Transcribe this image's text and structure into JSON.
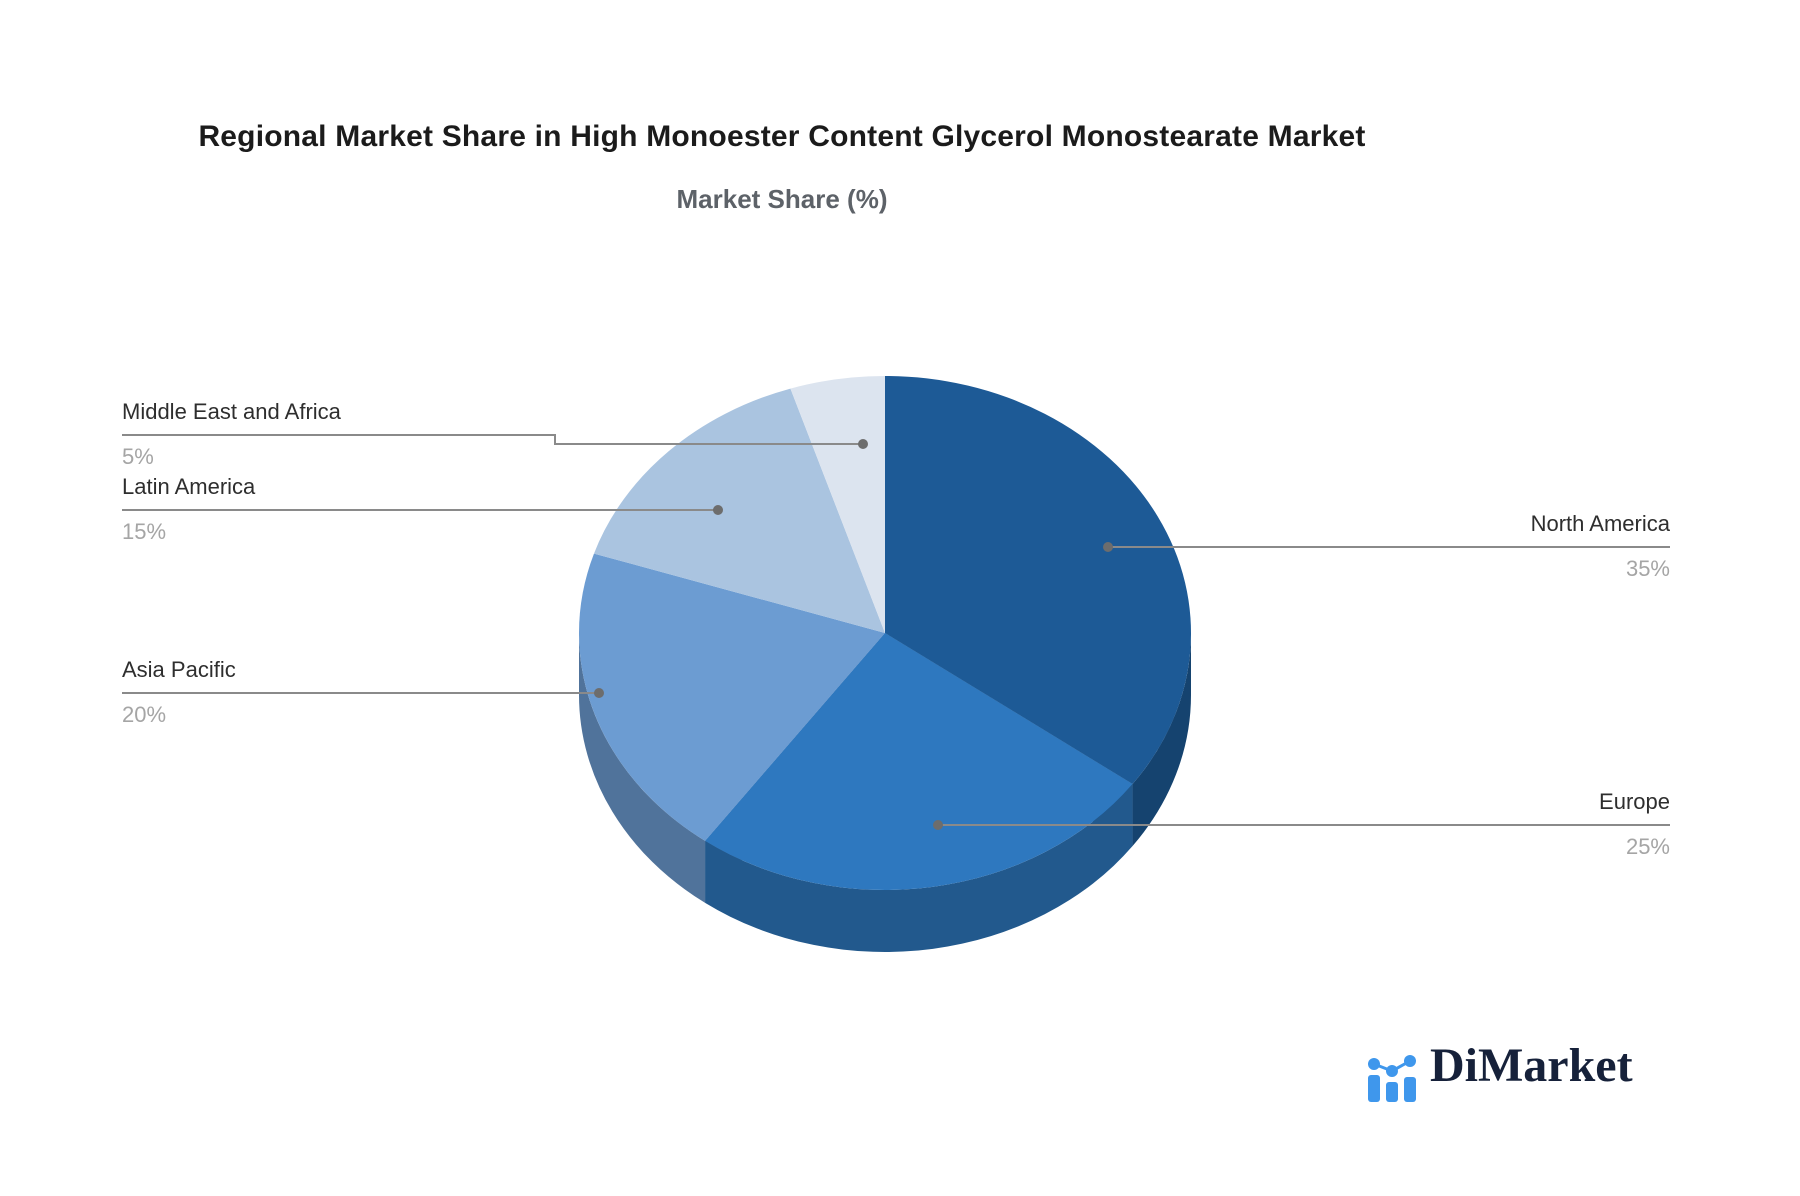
{
  "title": "Regional Market Share in High Monoester Content Glycerol Monostearate Market",
  "subtitle": "Market Share (%)",
  "brand": {
    "name": "DiMarket"
  },
  "chart_data": {
    "type": "pie",
    "style": "3d",
    "title": "Regional Market Share in High Monoester Content Glycerol Monostearate Market",
    "subtitle": "Market Share (%)",
    "unit": "%",
    "categories": [
      "North America",
      "Europe",
      "Asia Pacific",
      "Latin America",
      "Middle East and Africa"
    ],
    "values": [
      35,
      25,
      20,
      15,
      5
    ],
    "colors": [
      "#1d5a96",
      "#2e78bf",
      "#6c9cd2",
      "#aac4e0",
      "#dce4ef"
    ],
    "leader_line_color": "#8a8a8a",
    "label_name_color": "#2e2e2e",
    "label_percent_color": "#a5a5a5",
    "labels": [
      {
        "name": "North America",
        "percent": "35%"
      },
      {
        "name": "Europe",
        "percent": "25%"
      },
      {
        "name": "Asia Pacific",
        "percent": "20%"
      },
      {
        "name": "Latin America",
        "percent": "15%"
      },
      {
        "name": "Middle East and Africa",
        "percent": "5%"
      }
    ],
    "legend_position": "none",
    "grid": false
  }
}
